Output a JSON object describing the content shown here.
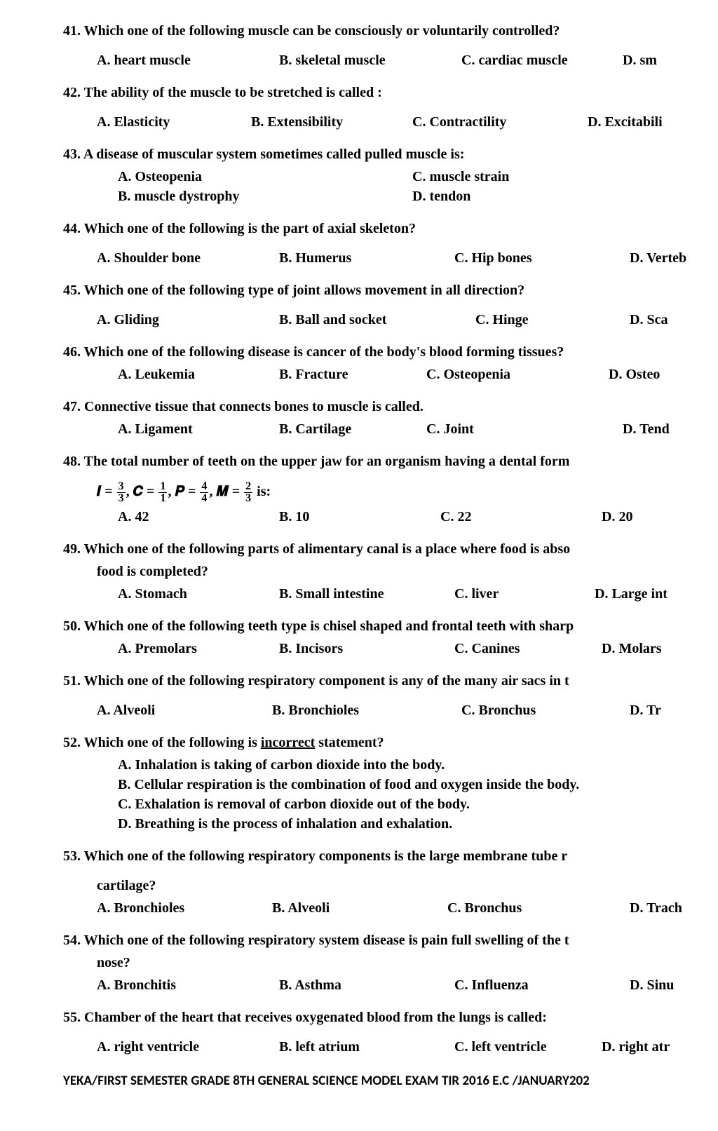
{
  "footer": "YEKA/FIRST SEMESTER GRADE 8TH GENERAL SCIENCE MODEL EXAM TIR 2016 E.C /JANUARY202",
  "questions": [
    {
      "num": "41.",
      "text": "Which one of the following muscle can be consciously or voluntarily controlled?",
      "layout": "row",
      "widths": [
        260,
        260,
        230,
        120
      ],
      "opts": [
        "A. heart muscle",
        "B. skeletal muscle",
        "C. cardiac muscle",
        "D. sm"
      ]
    },
    {
      "num": "42.",
      "text": "The ability of the muscle to be stretched is called :",
      "layout": "row",
      "widths": [
        220,
        230,
        250,
        170
      ],
      "opts": [
        "A. Elasticity",
        "B. Extensibility",
        "C. Contractility",
        "D. Excitabili"
      ]
    },
    {
      "num": "43.",
      "text": "A disease of muscular system sometimes called pulled muscle is:",
      "layout": "2col-tight",
      "left": [
        "A. Osteopenia",
        "B.  muscle dystrophy"
      ],
      "right": [
        "C. muscle strain",
        "D. tendon"
      ]
    },
    {
      "num": "44.",
      "text": "Which one of the following is the part of axial skeleton?",
      "layout": "row",
      "widths": [
        260,
        250,
        250,
        120
      ],
      "opts": [
        "A. Shoulder bone",
        "B. Humerus",
        "C. Hip bones",
        "D. Verteb"
      ]
    },
    {
      "num": "45.",
      "text": "Which one of the following type of joint allows movement in all direction?",
      "layout": "row",
      "widths": [
        260,
        280,
        220,
        120
      ],
      "opts": [
        "A. Gliding",
        "B. Ball and socket",
        "C. Hinge",
        "D. Sca"
      ]
    },
    {
      "num": "46.",
      "text": " Which one of the following disease is cancer of the body's blood forming tissues?",
      "layout": "row-tight",
      "indent": 78,
      "widths": [
        230,
        210,
        260,
        120
      ],
      "opts": [
        "A. Leukemia",
        "B. Fracture",
        "C. Osteopenia",
        "D. Osteo"
      ]
    },
    {
      "num": "47.",
      "text": "Connective tissue that connects bones to muscle is called.",
      "layout": "row-tight",
      "indent": 78,
      "widths": [
        230,
        210,
        280,
        120
      ],
      "opts": [
        "A.  Ligament",
        "B. Cartilage",
        "C. Joint",
        "D. Tend"
      ]
    },
    {
      "num": "48.",
      "text": "The total number of teeth on the upper jaw for an organism having a dental form",
      "layout": "formula",
      "formula_prefix": "𝑰 =",
      "f1n": "3",
      "f1d": "3",
      "f2p": ",  𝑪 =",
      "f2n": "1",
      "f2d": "1",
      "f3p": ", 𝑷 =",
      "f3n": "4",
      "f3d": "4",
      "f4p": ", 𝑴 =",
      "f4n": "2",
      "f4d": "3",
      "f_suffix": " is:",
      "indent": 78,
      "widths": [
        230,
        230,
        230,
        120
      ],
      "opts": [
        "A.  42",
        "B. 10",
        "C. 22",
        "D. 20"
      ]
    },
    {
      "num": "49.",
      "text": "Which one of the following parts of alimentary canal is a place where food is abso",
      "text2": "food is completed?",
      "layout": "row-tight",
      "indent": 78,
      "widths": [
        230,
        250,
        200,
        160
      ],
      "opts": [
        "A.  Stomach",
        "B. Small intestine",
        "C. liver",
        "D. Large int"
      ]
    },
    {
      "num": "50.",
      "text": "Which one of the following teeth type is chisel shaped and frontal teeth with sharp",
      "layout": "row-tight",
      "indent": 78,
      "widths": [
        230,
        250,
        210,
        150
      ],
      "opts": [
        "A.  Premolars",
        "B. Incisors",
        "C. Canines",
        "D. Molars"
      ]
    },
    {
      "num": "51.",
      "text": "Which one of the following respiratory component is any of the many air sacs in t",
      "layout": "row",
      "widths": [
        250,
        270,
        240,
        120
      ],
      "opts": [
        "A. Alveoli",
        "B. Bronchioles",
        "C. Bronchus",
        "D. Tr"
      ]
    },
    {
      "num": "52.",
      "text_html": "Which one of the following is <span class='underline'>incorrect</span> statement?",
      "layout": "vertical-tight",
      "opts": [
        "A.  Inhalation is taking of carbon dioxide into the body.",
        "B.  Cellular respiration is the combination of food and oxygen inside the body.",
        "C.  Exhalation is removal of carbon dioxide out of the body.",
        "D.  Breathing is the process of inhalation and exhalation."
      ]
    },
    {
      "num": "53.",
      "text": " Which one of the following respiratory components is the large membrane tube r",
      "text2_indent": 48,
      "text2": "cartilage?",
      "layout": "row",
      "widths": [
        250,
        250,
        260,
        120
      ],
      "opts": [
        "A. Bronchioles",
        "B. Alveoli",
        "C. Bronchus",
        "D. Trach"
      ]
    },
    {
      "num": "54.",
      "text": "Which one of the following respiratory system disease is pain full swelling of the t",
      "text2": "nose?",
      "layout": "row-tight",
      "widths": [
        260,
        250,
        250,
        120
      ],
      "opts": [
        "A. Bronchitis",
        "B. Asthma",
        "C. Influenza",
        "D. Sinu"
      ]
    },
    {
      "num": "55.",
      "text": "Chamber of the heart that receives oxygenated blood from the lungs is called:",
      "layout": "row",
      "widths": [
        260,
        250,
        210,
        160
      ],
      "opts": [
        "A. right ventricle",
        "B. left atrium",
        "C. left ventricle",
        "D. right atr"
      ]
    }
  ]
}
